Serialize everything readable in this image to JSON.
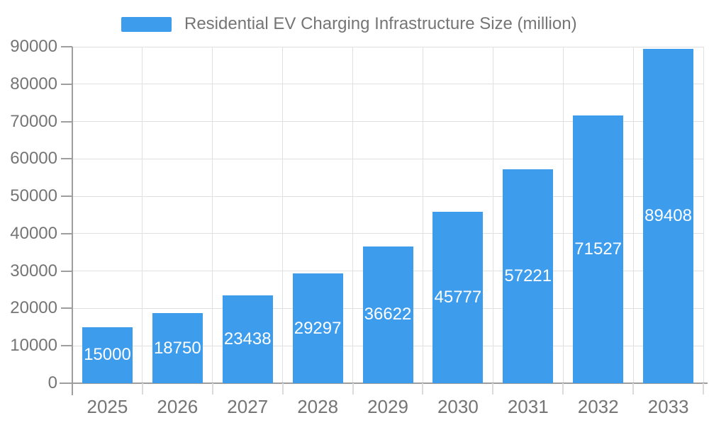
{
  "chart_data": {
    "type": "bar",
    "title": "Residential EV Charging Infrastructure Size (million)",
    "categories": [
      "2025",
      "2026",
      "2027",
      "2028",
      "2029",
      "2030",
      "2031",
      "2032",
      "2033"
    ],
    "series": [
      {
        "name": "Residential EV Charging Infrastructure Size (million)",
        "values": [
          15000,
          18750,
          23438,
          29297,
          36622,
          45777,
          57221,
          71527,
          89408
        ]
      }
    ],
    "bar_value_labels": [
      "15000",
      "18750",
      "23438",
      "29297",
      "36622",
      "45777",
      "57221",
      "71527",
      "89408"
    ],
    "xlabel": "",
    "ylabel": "",
    "ylim": [
      0,
      90000
    ],
    "yticks": [
      0,
      10000,
      20000,
      30000,
      40000,
      50000,
      60000,
      70000,
      80000,
      90000
    ],
    "grid": true,
    "legend_position": "top-center",
    "bar_label_position": "inside-center",
    "colors": {
      "bar": "#3D9CEC",
      "bar_label": "#FFFFFF",
      "axis_line": "#9E9E9E",
      "grid_line": "#E0E0E0",
      "x_tick_line": "#DBDBDB",
      "text": "#757575",
      "background": "#FFFFFF"
    }
  }
}
